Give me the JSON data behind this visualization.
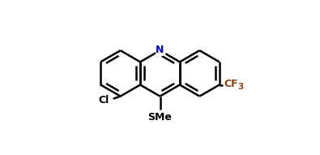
{
  "bg_color": "#ffffff",
  "bond_color": "#000000",
  "N_color": "#0000cd",
  "CF3_color": "#8b4513",
  "lw": 1.8,
  "dbo": 0.12,
  "fig_width": 3.95,
  "fig_height": 1.91,
  "dpi": 100,
  "xlim": [
    0,
    10
  ],
  "ylim": [
    0,
    4.84
  ],
  "r": 0.72
}
